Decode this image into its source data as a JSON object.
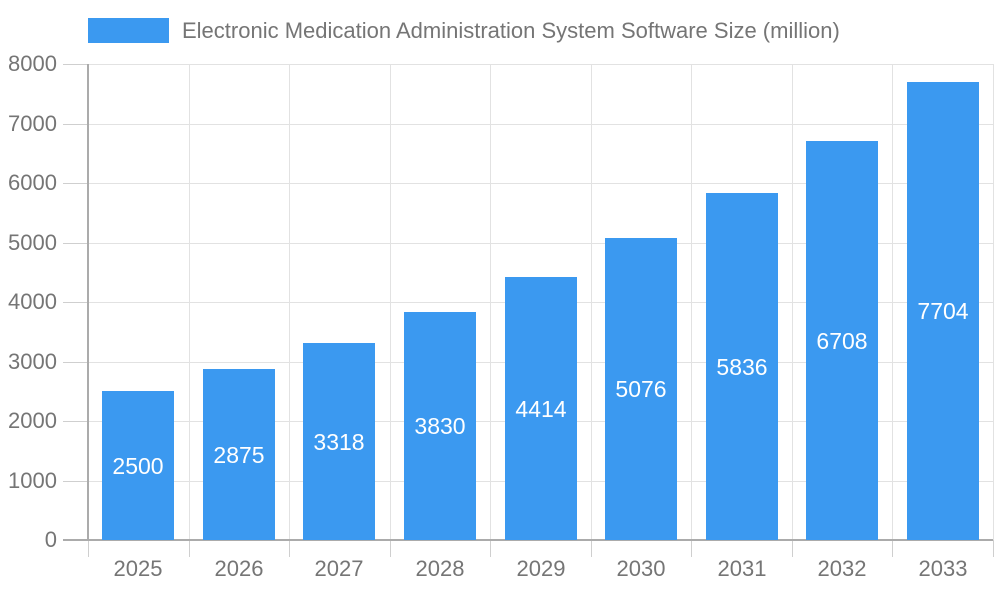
{
  "chart_data": {
    "type": "bar",
    "title": "Electronic Medication Administration System Software Size (million)",
    "categories": [
      "2025",
      "2026",
      "2027",
      "2028",
      "2029",
      "2030",
      "2031",
      "2032",
      "2033"
    ],
    "values": [
      2500,
      2875,
      3318,
      3830,
      4414,
      5076,
      5836,
      6708,
      7704
    ],
    "xlabel": "",
    "ylabel": "",
    "ylim": [
      0,
      8000
    ],
    "y_tick_step": 1000,
    "y_tick_labels": [
      "0",
      "1000",
      "2000",
      "3000",
      "4000",
      "5000",
      "6000",
      "7000",
      "8000"
    ],
    "grid": "on",
    "legend_position": "top-left",
    "colors": {
      "bar": "#3b99f0",
      "bar_label_text": "#ffffff",
      "axis_text": "#757575",
      "grid_line": "#e2e2e2",
      "tick_line": "#cfcfcf",
      "axis_line": "#ababab",
      "background": "#ffffff"
    }
  }
}
